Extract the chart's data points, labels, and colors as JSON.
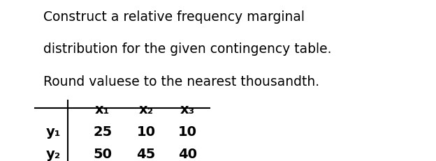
{
  "title_lines": [
    "Construct a relative frequency marginal",
    "distribution for the given contingency table.",
    "Round valuese to the nearest thousandth."
  ],
  "col_headers": [
    "x₁",
    "x₂",
    "x₃"
  ],
  "row_headers": [
    "y₁",
    "y₂"
  ],
  "table_data": [
    [
      25,
      10,
      10
    ],
    [
      50,
      45,
      40
    ]
  ],
  "bg_color": "#ffffff",
  "text_color": "#000000",
  "font_size_title": 13.5,
  "font_size_table": 14,
  "font_family": "DejaVu Sans"
}
